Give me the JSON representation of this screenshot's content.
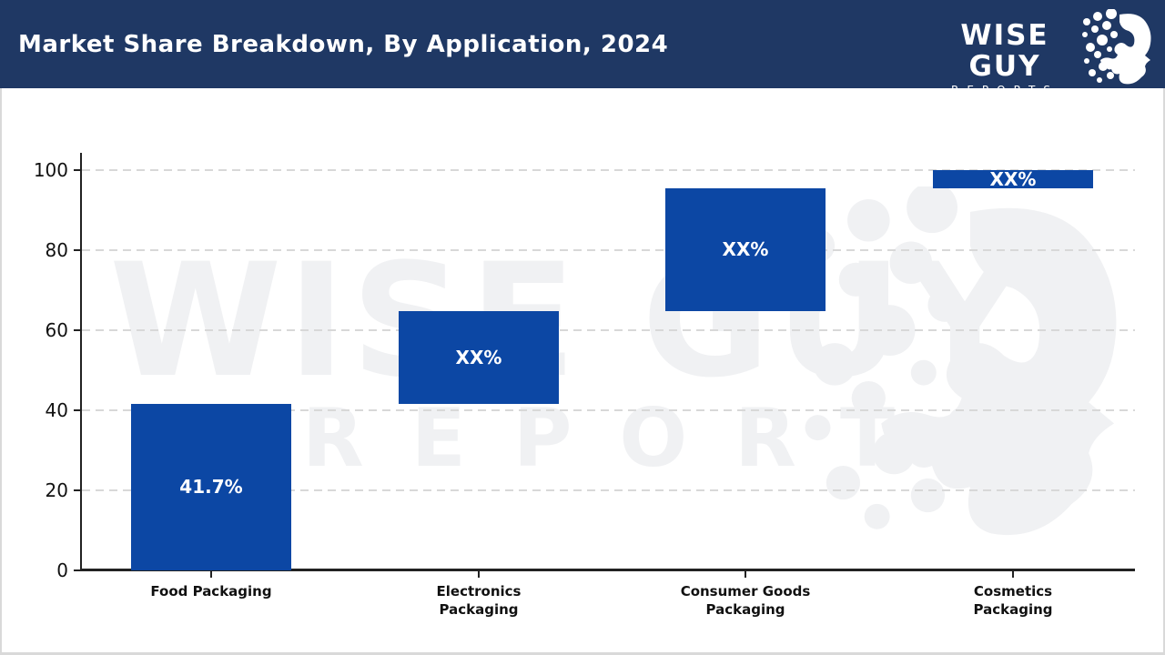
{
  "header": {
    "title": "Market Share Breakdown, By Application, 2024",
    "bg_color": "#1f3864",
    "logo": {
      "line1": "WISE GUY",
      "line2": "REPORTS"
    }
  },
  "watermark": {
    "line1": "WISE GUY",
    "line2": "REPORTS"
  },
  "chart_data": {
    "type": "bar",
    "subtype": "waterfall",
    "title": "Market Share Breakdown, By Application, 2024",
    "xlabel": "",
    "ylabel": "",
    "categories": [
      "Food Packaging",
      "Electronics Packaging",
      "Consumer Goods Packaging",
      "Cosmetics Packaging"
    ],
    "categories_lines": [
      [
        "Food Packaging"
      ],
      [
        "Electronics",
        "Packaging"
      ],
      [
        "Consumer Goods",
        "Packaging"
      ],
      [
        "Cosmetics",
        "Packaging"
      ]
    ],
    "segments": [
      {
        "category": "Food Packaging",
        "start": 0,
        "end": 41.7,
        "label": "41.7%"
      },
      {
        "category": "Electronics Packaging",
        "start": 41.7,
        "end": 64.8,
        "label": "XX%"
      },
      {
        "category": "Consumer Goods Packaging",
        "start": 64.8,
        "end": 95.5,
        "label": "XX%"
      },
      {
        "category": "Cosmetics Packaging",
        "start": 95.5,
        "end": 100,
        "label": "XX%"
      }
    ],
    "y_ticks": [
      0,
      20,
      40,
      60,
      80,
      100
    ],
    "ylim": [
      0,
      104
    ],
    "grid": true,
    "legend": false,
    "bar_color": "#0c47a4",
    "grid_color": "#d8d8d8",
    "axis_color": "#222222",
    "label_color": "#111111"
  }
}
